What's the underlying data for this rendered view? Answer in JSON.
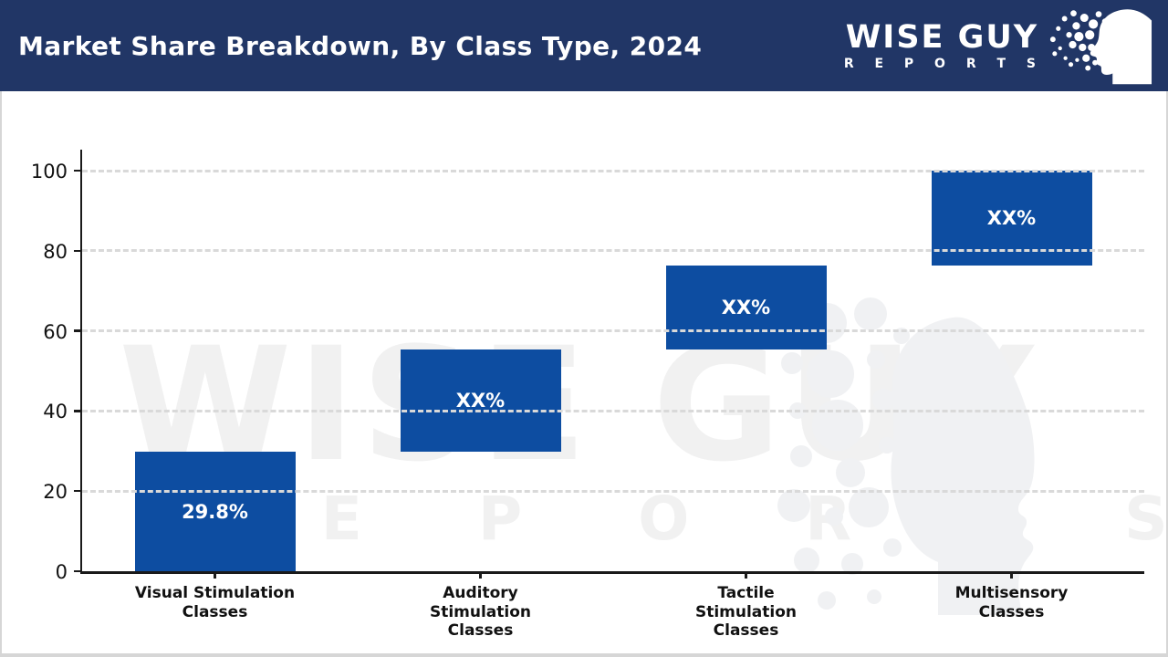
{
  "header": {
    "title": "Market Share Breakdown, By Class Type, 2024",
    "logo": {
      "line1": "WISE GUY",
      "line2": "R E P O R T S"
    }
  },
  "watermark": {
    "line1": "WISE GUY",
    "line2": "R E P O R T S"
  },
  "chart_data": {
    "type": "bar",
    "subtype": "waterfall",
    "title": "Market Share Breakdown, By Class Type, 2024",
    "categories": [
      "Visual Stimulation\nClasses",
      "Auditory\nStimulation\nClasses",
      "Tactile\nStimulation\nClasses",
      "Multisensory\nClasses"
    ],
    "segments": [
      {
        "start": 0,
        "end": 29.8,
        "label": "29.8%"
      },
      {
        "start": 29.8,
        "end": 55.4,
        "label": "XX%"
      },
      {
        "start": 55.4,
        "end": 76.4,
        "label": "XX%"
      },
      {
        "start": 76.4,
        "end": 100,
        "label": "XX%"
      }
    ],
    "ylim": [
      0,
      100
    ],
    "yticks": [
      0,
      20,
      40,
      60,
      80,
      100
    ],
    "grid": "horizontal-dashed-on-top",
    "legend": "none",
    "colors": {
      "bar": "#0d4da1",
      "bar_label": "#ffffff",
      "grid": "#d9d9d9",
      "axis": "#1a1a1a",
      "header_bg": "#213666",
      "header_text": "#ffffff",
      "watermark": "#f0f1f3"
    }
  }
}
